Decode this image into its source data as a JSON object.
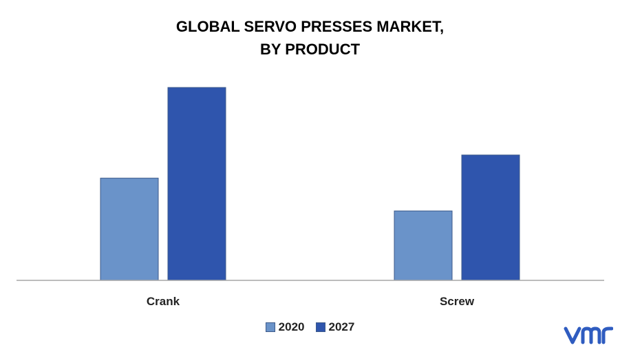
{
  "chart_data": {
    "type": "bar",
    "title_lines": [
      "GLOBAL SERVO PRESSES MARKET,",
      "BY PRODUCT"
    ],
    "categories": [
      "Crank",
      "Screw"
    ],
    "series": [
      {
        "name": "2020",
        "values": [
          5.3,
          3.6
        ],
        "color": "#6a93c9"
      },
      {
        "name": "2027",
        "values": [
          10.0,
          6.5
        ],
        "color": "#2f55ad"
      }
    ],
    "ylim": [
      0,
      10.5
    ],
    "grid": false,
    "legend_position": "bottom-center"
  },
  "logo": {
    "icon": "vmr-logo-icon",
    "color": "#2f5cc0"
  }
}
